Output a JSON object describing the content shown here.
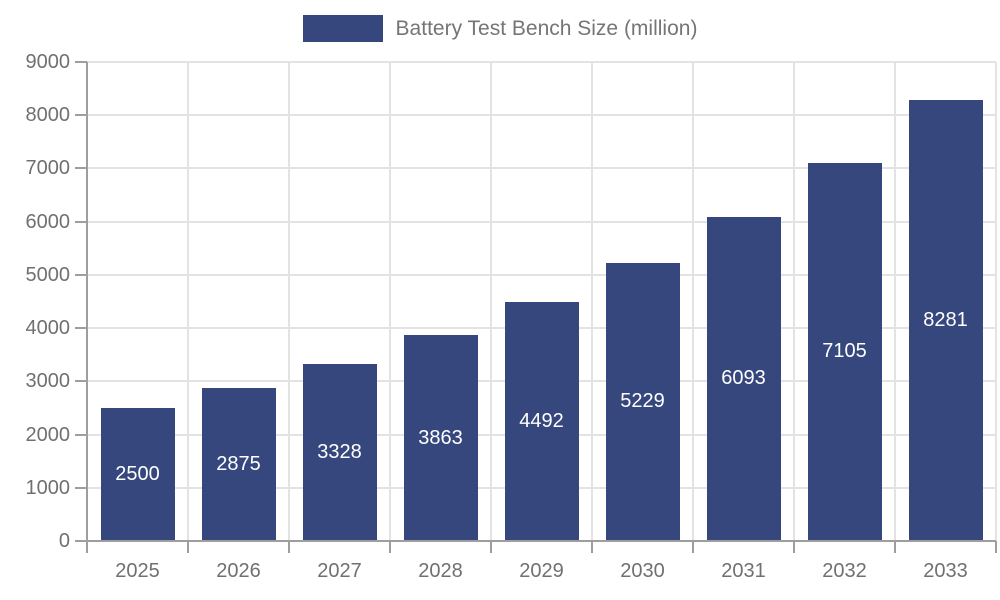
{
  "legend": {
    "label": "Battery Test Bench Size (million)"
  },
  "chart_data": {
    "type": "bar",
    "title": "Battery Test Bench Size (million)",
    "series_name": "Battery Test Bench Size (million)",
    "categories": [
      "2025",
      "2026",
      "2027",
      "2028",
      "2029",
      "2030",
      "2031",
      "2032",
      "2033"
    ],
    "values": [
      2500,
      2875,
      3328,
      3863,
      4492,
      5229,
      6093,
      7105,
      8281
    ],
    "xlabel": "",
    "ylabel": "",
    "ylim": [
      0,
      9000
    ],
    "yticks": [
      0,
      1000,
      2000,
      3000,
      4000,
      5000,
      6000,
      7000,
      8000,
      9000
    ],
    "grid": true,
    "value_labels": "inside-center",
    "legend_position": "top-center"
  },
  "colors": {
    "bar": "#36477E",
    "grid": "#e3e3e3",
    "axis": "#9e9e9e",
    "text": "#707070",
    "value_label": "#ffffff",
    "background": "#ffffff"
  }
}
